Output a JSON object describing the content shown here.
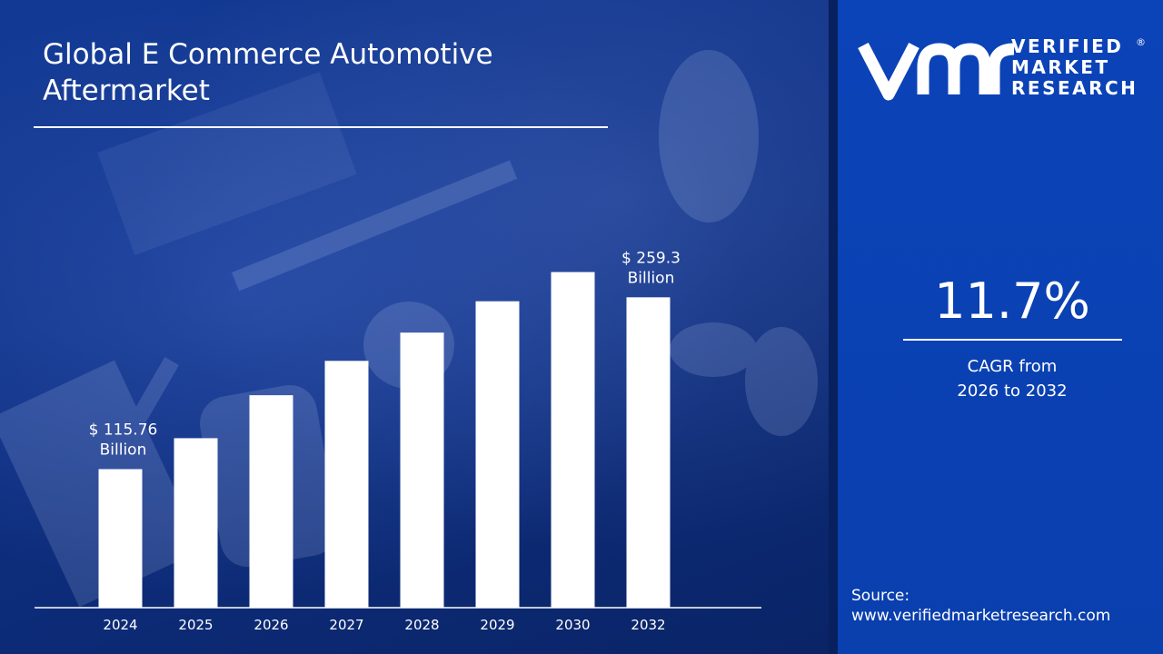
{
  "title_lines": [
    "Global E Commerce Automotive",
    "Aftermarket"
  ],
  "brand": {
    "mark": "vmr",
    "lines": [
      "VERIFIED",
      "MARKET",
      "RESEARCH"
    ],
    "registered": "®"
  },
  "cagr": {
    "value": "11.7%",
    "label_line1": "CAGR from",
    "label_line2": "2026 to 2032"
  },
  "source": {
    "label": "Source:",
    "url": "www.verifiedmarketresearch.com"
  },
  "colors": {
    "bar": "#ffffff",
    "panel": "#0b43b8",
    "background": "#0e2f82"
  },
  "chart_data": {
    "type": "bar",
    "title": "Global E Commerce Automotive Aftermarket",
    "categories": [
      "2024",
      "2025",
      "2026",
      "2027",
      "2028",
      "2029",
      "2030",
      "2032"
    ],
    "values": [
      115.76,
      141.6,
      177.5,
      206.2,
      229.8,
      256.0,
      280.4,
      259.3
    ],
    "annotations": [
      {
        "category": "2024",
        "lines": [
          "$ 115.76",
          "Billion"
        ]
      },
      {
        "category": "2032",
        "lines": [
          "$ 259.3",
          "Billion"
        ]
      }
    ],
    "ylim": [
      0,
      330
    ],
    "grid": false,
    "legend": "none"
  }
}
